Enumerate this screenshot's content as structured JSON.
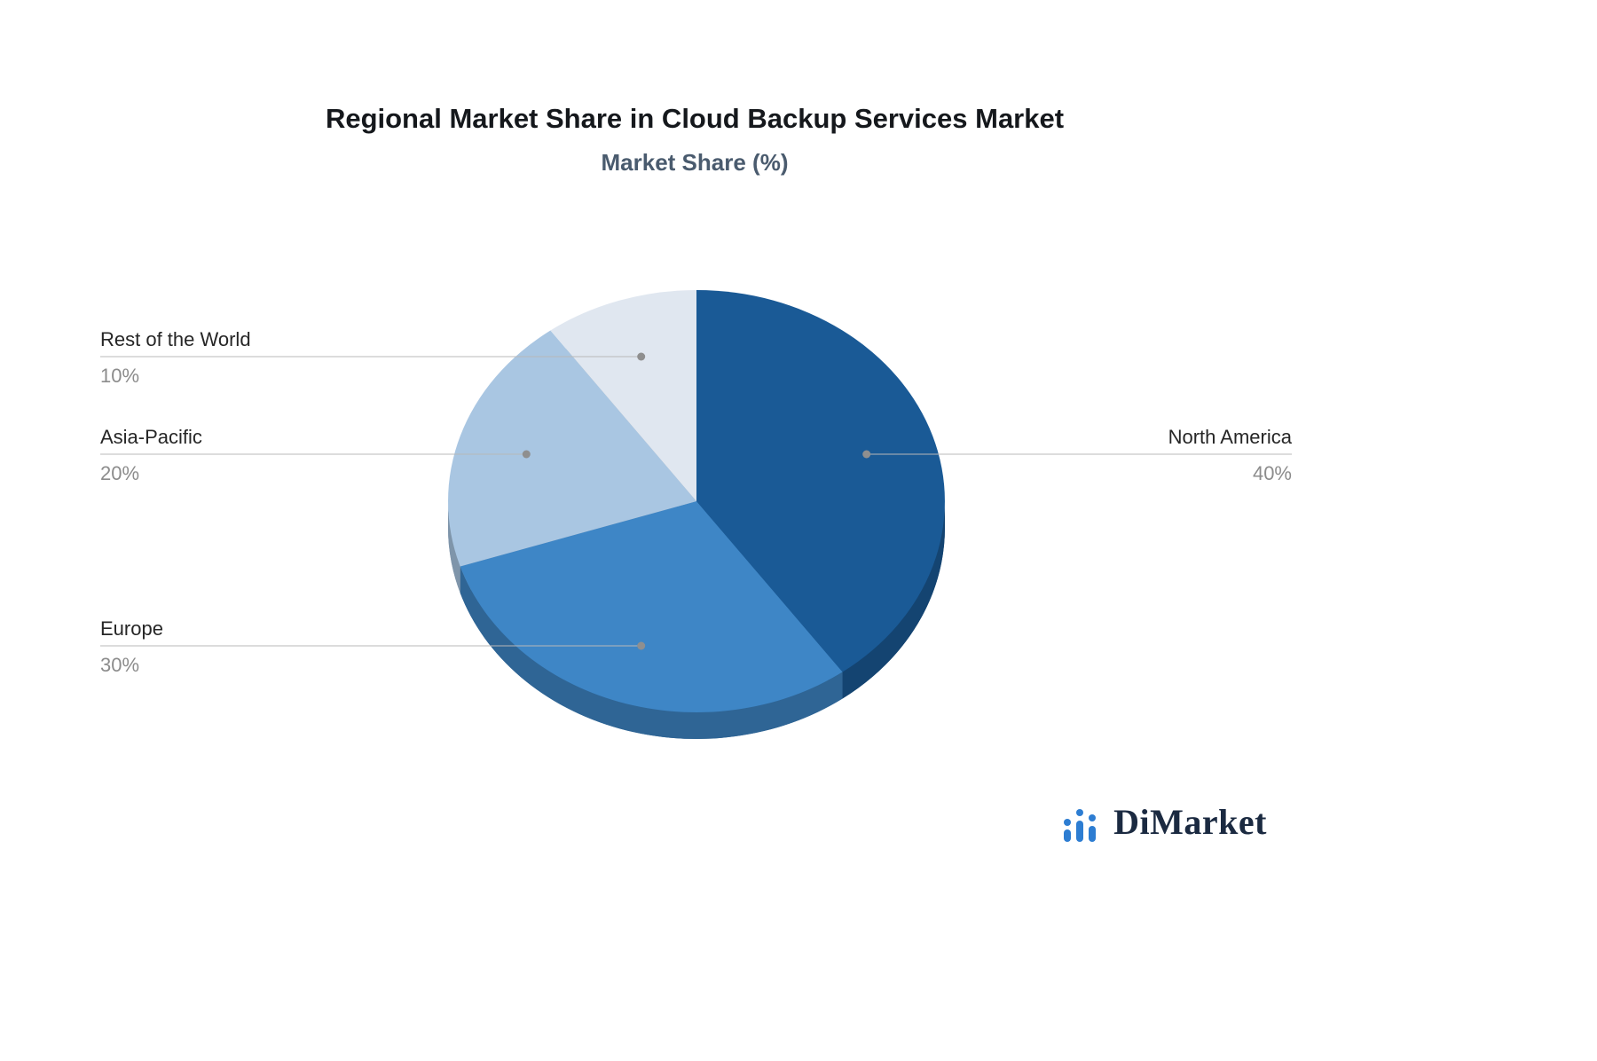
{
  "title": "Regional Market Share in Cloud Backup Services Market",
  "subtitle": "Market Share (%)",
  "brand": {
    "name": "DiMarket",
    "icon": "bar-chart-logo-icon",
    "color": "#2d7dd2",
    "text_color": "#1b2a41"
  },
  "chart_data": {
    "type": "pie",
    "title": "Regional Market Share in Cloud Backup Services Market",
    "subtitle": "Market Share (%)",
    "unit": "%",
    "effect": "3d",
    "direction": "clockwise",
    "start_angle_deg": 0,
    "legend_position": "callout-labels",
    "slices": [
      {
        "label": "North America",
        "value": 40,
        "color": "#1a5a96",
        "side": "right"
      },
      {
        "label": "Europe",
        "value": 30,
        "color": "#3e86c6",
        "side": "left"
      },
      {
        "label": "Asia-Pacific",
        "value": 20,
        "color": "#a9c6e2",
        "side": "left"
      },
      {
        "label": "Rest of the World",
        "value": 10,
        "color": "#e0e7f0",
        "side": "left"
      }
    ],
    "label_color": "#262626",
    "value_label_color": "#8c8c8c",
    "leader_line_color": "#b8b8b8",
    "leader_dot_color": "#8f8f8f"
  }
}
